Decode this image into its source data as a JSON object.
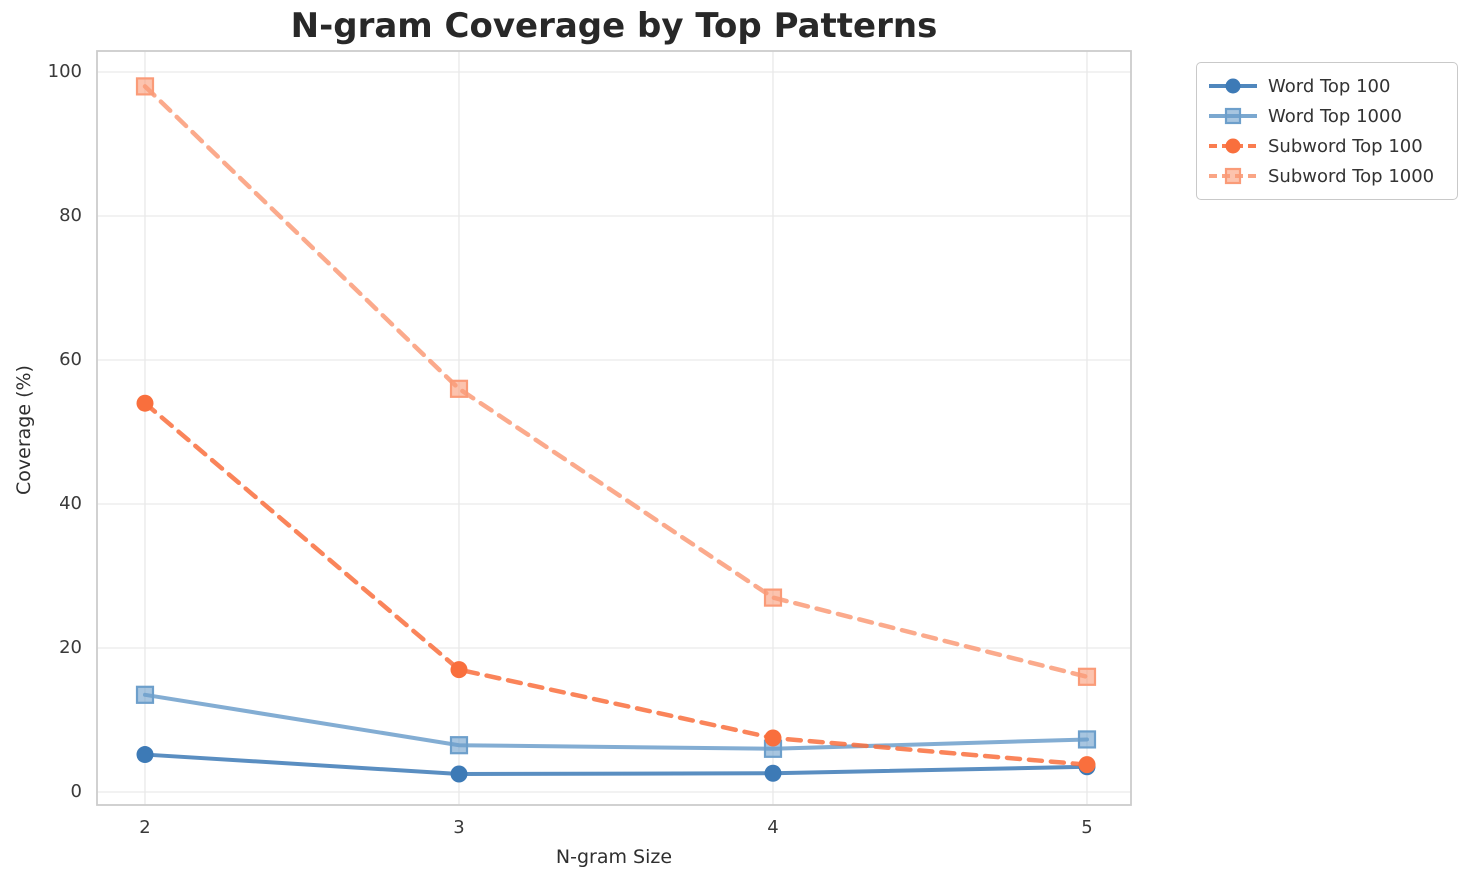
{
  "title": "N-gram Coverage by Top Patterns",
  "axes": {
    "xlabel": "N-gram Size",
    "ylabel": "Coverage (%)",
    "x_ticks": [
      2,
      3,
      4,
      5
    ],
    "y_ticks": [
      0,
      20,
      40,
      60,
      80,
      100
    ]
  },
  "chart_data": {
    "type": "line",
    "title": "N-gram Coverage by Top Patterns",
    "xlabel": "N-gram Size",
    "ylabel": "Coverage (%)",
    "x": [
      2,
      3,
      4,
      5
    ],
    "xlim": [
      1.85,
      5.14
    ],
    "ylim": [
      -2,
      103
    ],
    "grid": true,
    "legend_position": "outside-upper-right",
    "series": [
      {
        "name": "Word Top 100",
        "color": "#3d7ab6",
        "marker": "circle",
        "dash": false,
        "values": [
          5.2,
          2.5,
          2.6,
          3.5
        ]
      },
      {
        "name": "Word Top 1000",
        "color": "#6d9fcb",
        "marker": "square",
        "dash": false,
        "values": [
          13.5,
          6.5,
          6.0,
          7.3
        ]
      },
      {
        "name": "Subword Top 100",
        "color": "#f96f3d",
        "marker": "circle",
        "dash": true,
        "values": [
          54,
          17,
          7.5,
          3.8
        ]
      },
      {
        "name": "Subword Top 1000",
        "color": "#fa9b78",
        "marker": "square",
        "dash": true,
        "values": [
          98,
          56,
          27,
          16
        ]
      }
    ]
  },
  "style": {
    "background": "#ffffff",
    "grid_color": "#e9e9e9",
    "spine_color": "#cccccc",
    "tick_label_color": "#3a3a3a",
    "title_color": "#282828",
    "legend_border_color": "#c9c9c9"
  }
}
